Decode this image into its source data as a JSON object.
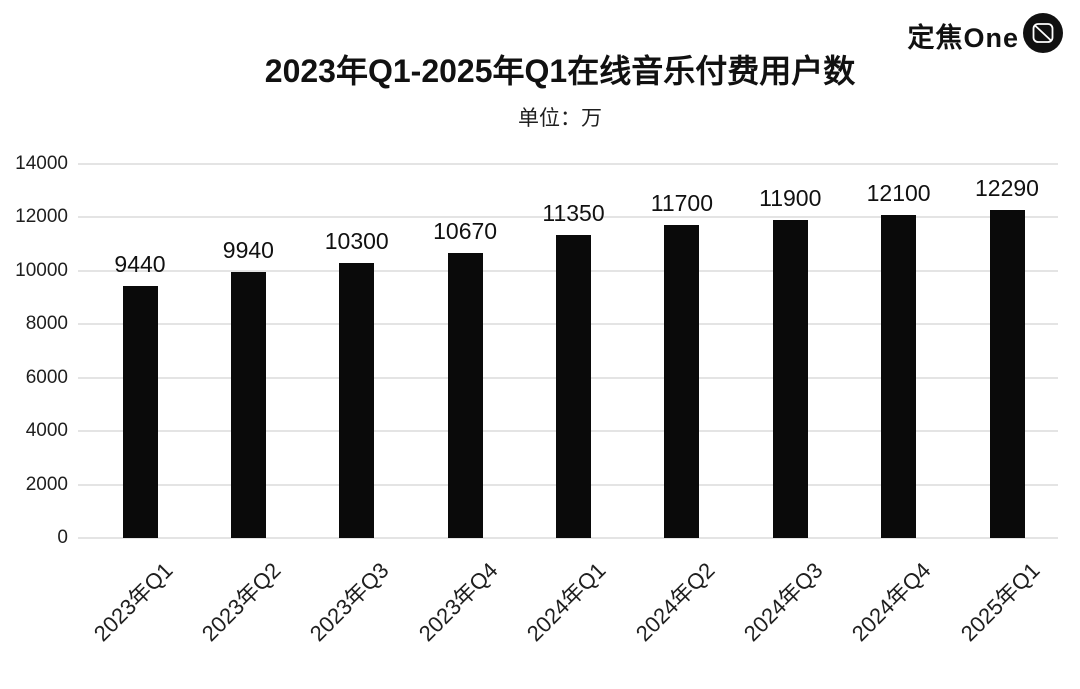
{
  "branding": {
    "logo_text": "定焦One",
    "logo_icon": "focus-frame-icon"
  },
  "chart_data": {
    "type": "bar",
    "title": "2023年Q1-2025年Q1在线音乐付费用户数",
    "subtitle": "单位：万",
    "categories": [
      "2023年Q1",
      "2023年Q2",
      "2023年Q3",
      "2023年Q4",
      "2024年Q1",
      "2024年Q2",
      "2024年Q3",
      "2024年Q4",
      "2025年Q1"
    ],
    "values": [
      9440,
      9940,
      10300,
      10670,
      11350,
      11700,
      11900,
      12100,
      12290
    ],
    "value_labels": [
      "9440",
      "9940",
      "10300",
      "10670",
      "11350",
      "11700",
      "11900",
      "12100",
      "12290"
    ],
    "xlabel": "",
    "ylabel": "",
    "ylim": [
      0,
      14000
    ],
    "yticks": [
      0,
      2000,
      4000,
      6000,
      8000,
      10000,
      12000,
      14000
    ],
    "grid": "horizontal",
    "legend_position": "none",
    "colors": {
      "bar": "#0a0a0a",
      "gridline": "#e4e4e4",
      "text": "#1a1a1a",
      "background": "#ffffff"
    }
  }
}
